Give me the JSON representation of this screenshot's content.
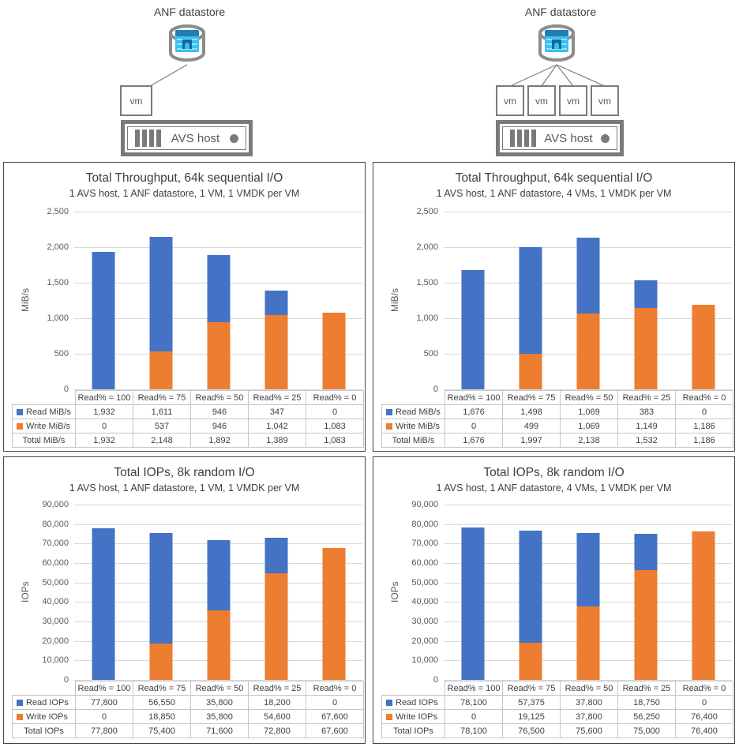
{
  "diagrams": [
    {
      "title": "ANF datastore",
      "vm_label": "vm",
      "vm_count": 1,
      "host_label": "AVS host"
    },
    {
      "title": "ANF datastore",
      "vm_label": "vm",
      "vm_count": 4,
      "host_label": "AVS host"
    }
  ],
  "colors": {
    "read": "#4472C4",
    "write": "#ED7D31",
    "gridline": "#D9D9D9",
    "diagram_gray": "#7A7A7A",
    "text": "#3F3F3F"
  },
  "chart_data": [
    {
      "type": "bar",
      "stacked": true,
      "title": "Total Throughput, 64k sequential I/O",
      "subtitle": "1 AVS host, 1 ANF datastore, 1 VM, 1 VMDK per VM",
      "ylabel": "MiB/s",
      "ylim": [
        0,
        2500
      ],
      "ytick_step": 500,
      "grid": true,
      "legend_position": "data-table-left",
      "categories": [
        "Read% = 100",
        "Read% = 75",
        "Read% = 50",
        "Read% = 25",
        "Read% = 0"
      ],
      "series": [
        {
          "name": "Read MiB/s",
          "color": "#4472C4",
          "values": [
            1932,
            1611,
            946,
            347,
            0
          ]
        },
        {
          "name": "Write MiB/s",
          "color": "#ED7D31",
          "values": [
            0,
            537,
            946,
            1042,
            1083
          ]
        }
      ],
      "totals": {
        "name": "Total MiB/s",
        "values": [
          1932,
          2148,
          1892,
          1389,
          1083
        ]
      }
    },
    {
      "type": "bar",
      "stacked": true,
      "title": "Total Throughput, 64k sequential I/O",
      "subtitle": "1 AVS host, 1 ANF datastore, 4 VMs, 1 VMDK per VM",
      "ylabel": "MiB/s",
      "ylim": [
        0,
        2500
      ],
      "ytick_step": 500,
      "grid": true,
      "legend_position": "data-table-left",
      "categories": [
        "Read% = 100",
        "Read% = 75",
        "Read% = 50",
        "Read% = 25",
        "Read% = 0"
      ],
      "series": [
        {
          "name": "Read MiB/s",
          "color": "#4472C4",
          "values": [
            1676,
            1498,
            1069,
            383,
            0
          ]
        },
        {
          "name": "Write MiB/s",
          "color": "#ED7D31",
          "values": [
            0,
            499,
            1069,
            1149,
            1186
          ]
        }
      ],
      "totals": {
        "name": "Total MiB/s",
        "values": [
          1676,
          1997,
          2138,
          1532,
          1186
        ]
      }
    },
    {
      "type": "bar",
      "stacked": true,
      "title": "Total IOPs, 8k random I/O",
      "subtitle": "1 AVS host, 1 ANF datastore, 1 VM, 1 VMDK per VM",
      "ylabel": "IOPs",
      "ylim": [
        0,
        90000
      ],
      "ytick_step": 10000,
      "grid": true,
      "legend_position": "data-table-left",
      "categories": [
        "Read% = 100",
        "Read% = 75",
        "Read% = 50",
        "Read% = 25",
        "Read% = 0"
      ],
      "series": [
        {
          "name": "Read IOPs",
          "color": "#4472C4",
          "values": [
            77800,
            56550,
            35800,
            18200,
            0
          ]
        },
        {
          "name": "Write IOPs",
          "color": "#ED7D31",
          "values": [
            0,
            18850,
            35800,
            54600,
            67600
          ]
        }
      ],
      "totals": {
        "name": "Total IOPs",
        "values": [
          77800,
          75400,
          71600,
          72800,
          67600
        ]
      }
    },
    {
      "type": "bar",
      "stacked": true,
      "title": "Total IOPs, 8k random I/O",
      "subtitle": "1 AVS host, 1 ANF datastore, 4 VMs, 1 VMDK per VM",
      "ylabel": "IOPs",
      "ylim": [
        0,
        90000
      ],
      "ytick_step": 10000,
      "grid": true,
      "legend_position": "data-table-left",
      "categories": [
        "Read% = 100",
        "Read% = 75",
        "Read% = 50",
        "Read% = 25",
        "Read% = 0"
      ],
      "series": [
        {
          "name": "Read IOPs",
          "color": "#4472C4",
          "values": [
            78100,
            57375,
            37800,
            18750,
            0
          ]
        },
        {
          "name": "Write IOPs",
          "color": "#ED7D31",
          "values": [
            0,
            19125,
            37800,
            56250,
            76400
          ]
        }
      ],
      "totals": {
        "name": "Total IOPs",
        "values": [
          78100,
          76500,
          75600,
          75000,
          76400
        ]
      }
    }
  ]
}
